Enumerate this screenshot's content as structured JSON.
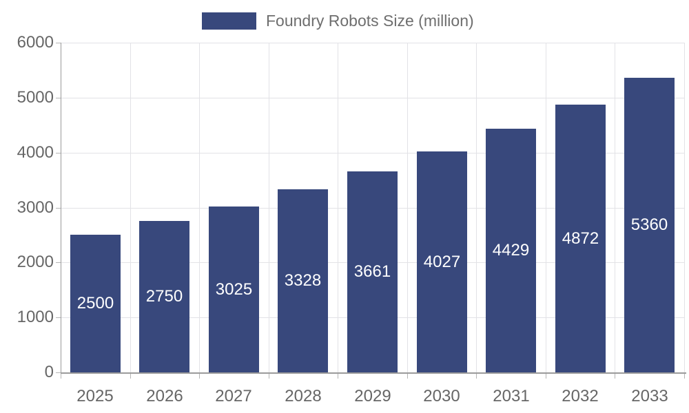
{
  "chart_data": {
    "type": "bar",
    "title": "Foundry Robots Size (million)",
    "categories": [
      "2025",
      "2026",
      "2027",
      "2028",
      "2029",
      "2030",
      "2031",
      "2032",
      "2033"
    ],
    "series": [
      {
        "name": "Foundry Robots Size (million)",
        "color": "#38487C",
        "values": [
          2500,
          2750,
          3025,
          3328,
          3661,
          4027,
          4429,
          4872,
          5360
        ]
      }
    ],
    "xlabel": "",
    "ylabel": "",
    "ylim": [
      0,
      6000
    ],
    "ytick_step": 1000,
    "ytick_labels": [
      "0",
      "1000",
      "2000",
      "3000",
      "4000",
      "5000",
      "6000"
    ],
    "grid": true,
    "legend_position": "top",
    "value_label_position": "inside-center",
    "colors": {
      "value_label": "#FFFFFF",
      "axis_label": "#666666",
      "title_text": "#6E6E6E",
      "gridline": "#E2E2E6",
      "axis_line": "#9A9A9A",
      "tick": "#B5B5B5",
      "background": "#FFFFFF"
    }
  }
}
